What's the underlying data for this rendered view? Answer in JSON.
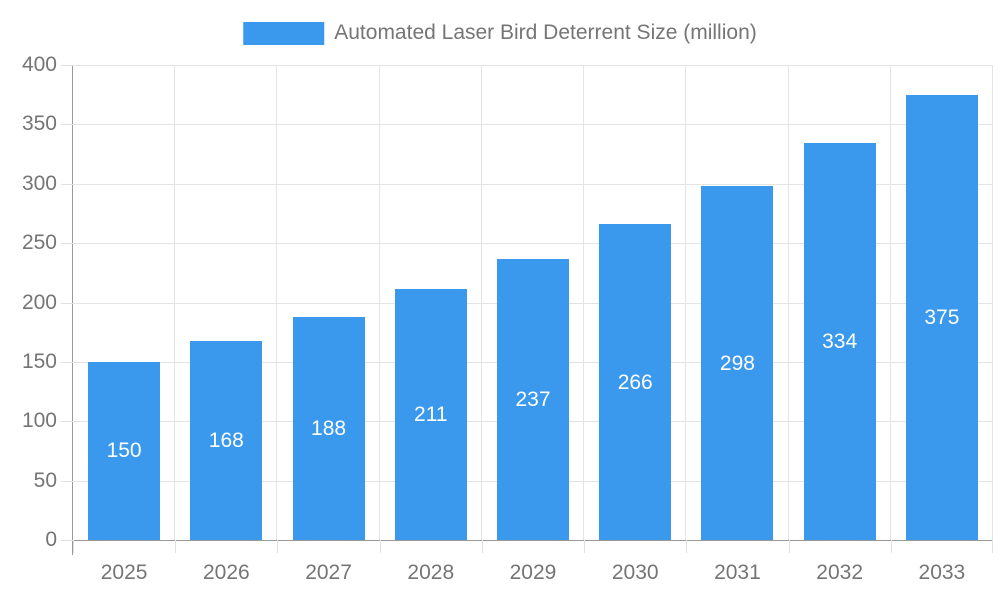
{
  "legend": {
    "label": "Automated Laser Bird Deterrent Size (million)"
  },
  "chart_data": {
    "type": "bar",
    "title": "Automated Laser Bird Deterrent Size (million)",
    "categories": [
      "2025",
      "2026",
      "2027",
      "2028",
      "2029",
      "2030",
      "2031",
      "2032",
      "2033"
    ],
    "values": [
      150,
      168,
      188,
      211,
      237,
      266,
      298,
      334,
      375
    ],
    "value_labels": [
      "150",
      "168",
      "188",
      "211",
      "237",
      "266",
      "298",
      "334",
      "375"
    ],
    "xlabel": "",
    "ylabel": "",
    "ylim": [
      0,
      400
    ],
    "yticks": [
      0,
      50,
      100,
      150,
      200,
      250,
      300,
      350,
      400
    ],
    "grid": true,
    "legend_position": "top-center",
    "series_name": "Automated Laser Bird Deterrent Size (million)"
  },
  "colors": {
    "bar": "#3a99ec",
    "grid": "#e4e4e4",
    "tick": "#e0e0e0",
    "axis": "#999999",
    "tick_label": "#757575",
    "value_label": "#ffffff",
    "background": "#ffffff"
  }
}
